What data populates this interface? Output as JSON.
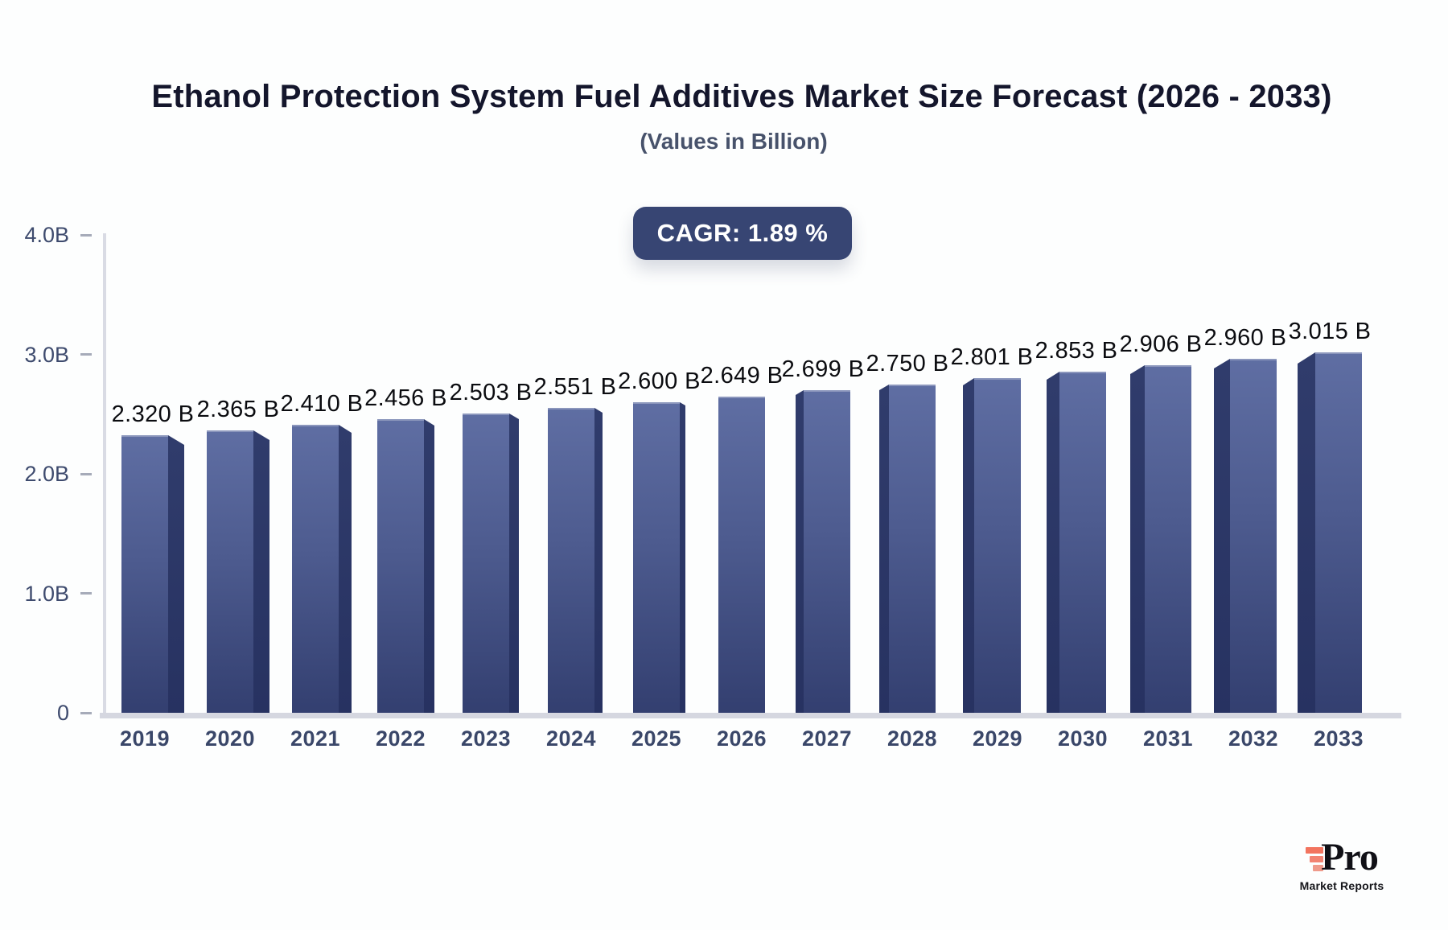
{
  "title": "Ethanol Protection System Fuel Additives Market Size Forecast (2026 - 2033)",
  "subtitle": "(Values in Billion)",
  "badge": {
    "label": "CAGR: 1.89 %",
    "value_pct": 1.89
  },
  "logo": {
    "name": "Pro",
    "tagline": "Market Reports"
  },
  "chart_data": {
    "type": "bar",
    "title": "Ethanol Protection System Fuel Additives Market Size Forecast (2026 - 2033)",
    "subtitle": "(Values in Billion)",
    "categories": [
      "2019",
      "2020",
      "2021",
      "2022",
      "2023",
      "2024",
      "2025",
      "2026",
      "2027",
      "2028",
      "2029",
      "2030",
      "2031",
      "2032",
      "2033"
    ],
    "values": [
      2.32,
      2.365,
      2.41,
      2.456,
      2.503,
      2.551,
      2.6,
      2.649,
      2.699,
      2.75,
      2.801,
      2.853,
      2.906,
      2.96,
      3.015
    ],
    "unit": "B",
    "value_labels": [
      "2.320 B",
      "2.365 B",
      "2.410 B",
      "2.456 B",
      "2.503 B",
      "2.551 B",
      "2.600 B",
      "2.649 B",
      "2.699 B",
      "2.750 B",
      "2.801 B",
      "2.853 B",
      "2.906 B",
      "2.960 B",
      "3.015 B"
    ],
    "ylim": [
      0,
      4.0
    ],
    "yticks": {
      "labels": [
        "4.0B",
        "3.0B",
        "2.0B",
        "1.0B",
        "0"
      ],
      "values": [
        4.0,
        3.0,
        2.0,
        1.0,
        0
      ]
    },
    "grid": false,
    "legend": false
  },
  "colors": {
    "bar_front_top": "#5f6ea3",
    "bar_front_mid": "#4d5b8f",
    "bar_front_bottom": "#333f70",
    "bar_side_top": "#303c6c",
    "bar_side_bottom": "#273261",
    "badge_bg": "#374573",
    "badge_text": "#ffffff",
    "axis_line": "#d9dbe4",
    "tick": "#a6abb9",
    "axis_label": "#3e4b6e",
    "year_label": "#3a4769",
    "value_label": "#0b0c10",
    "title": "#14162c",
    "subtitle": "#47526b",
    "logo_bars": [
      "#f2745f",
      "#f28372",
      "#ef9a8b"
    ],
    "logo_text": "#101016"
  }
}
